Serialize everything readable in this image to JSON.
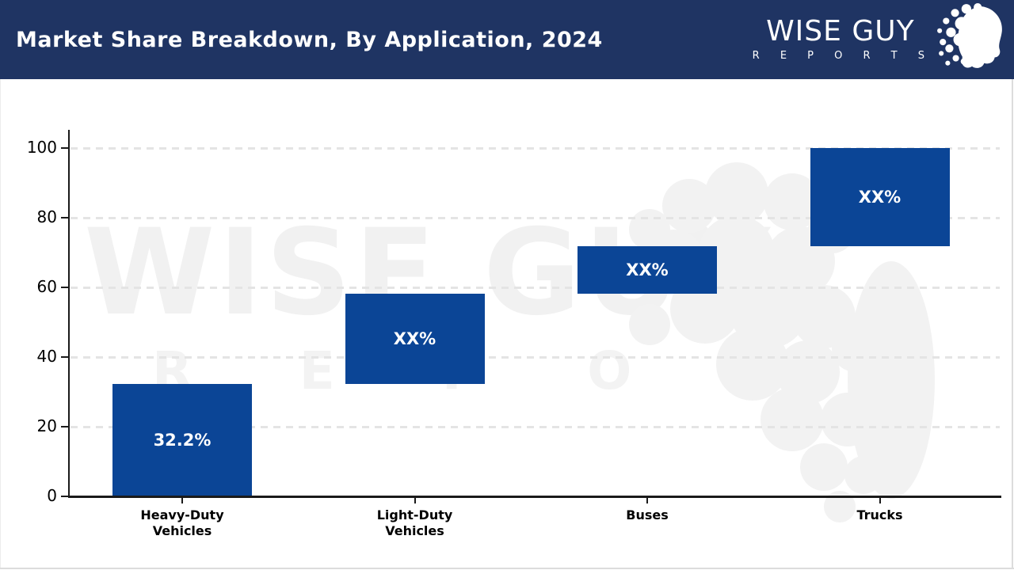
{
  "header": {
    "title": "Market Share Breakdown, By Application, 2024",
    "logo": {
      "wordmark": "WISE GUY",
      "subtext": "R E P O R T S"
    }
  },
  "watermark": {
    "big_text": "WISE GUY",
    "sub_text": "R E P O R T S"
  },
  "chart_data": {
    "type": "bar",
    "subtype": "waterfall",
    "title": "Market Share Breakdown, By Application, 2024",
    "categories": [
      "Heavy-Duty\nVehicles",
      "Light-Duty\nVehicles",
      "Buses",
      "Trucks"
    ],
    "segments": [
      {
        "category": "Heavy-Duty Vehicles",
        "start": 0,
        "end": 32.2,
        "label": "32.2%"
      },
      {
        "category": "Light-Duty Vehicles",
        "start": 32.2,
        "end": 58.2,
        "label": "XX%"
      },
      {
        "category": "Buses",
        "start": 58.2,
        "end": 71.8,
        "label": "XX%"
      },
      {
        "category": "Trucks",
        "start": 71.8,
        "end": 100,
        "label": "XX%"
      }
    ],
    "ylim": [
      0,
      100
    ],
    "yticks": [
      0,
      20,
      40,
      60,
      80,
      100
    ],
    "grid": "horizontal dashed",
    "legend": "none",
    "bar_color": "#0b4596",
    "bar_label_color": "#ffffff"
  },
  "colors": {
    "header_bg": "#1f3463",
    "axis": "#1a1a1a",
    "grid": "#e4e4e4",
    "tick_label": "#000000",
    "watermark": "#f1f1f1"
  }
}
